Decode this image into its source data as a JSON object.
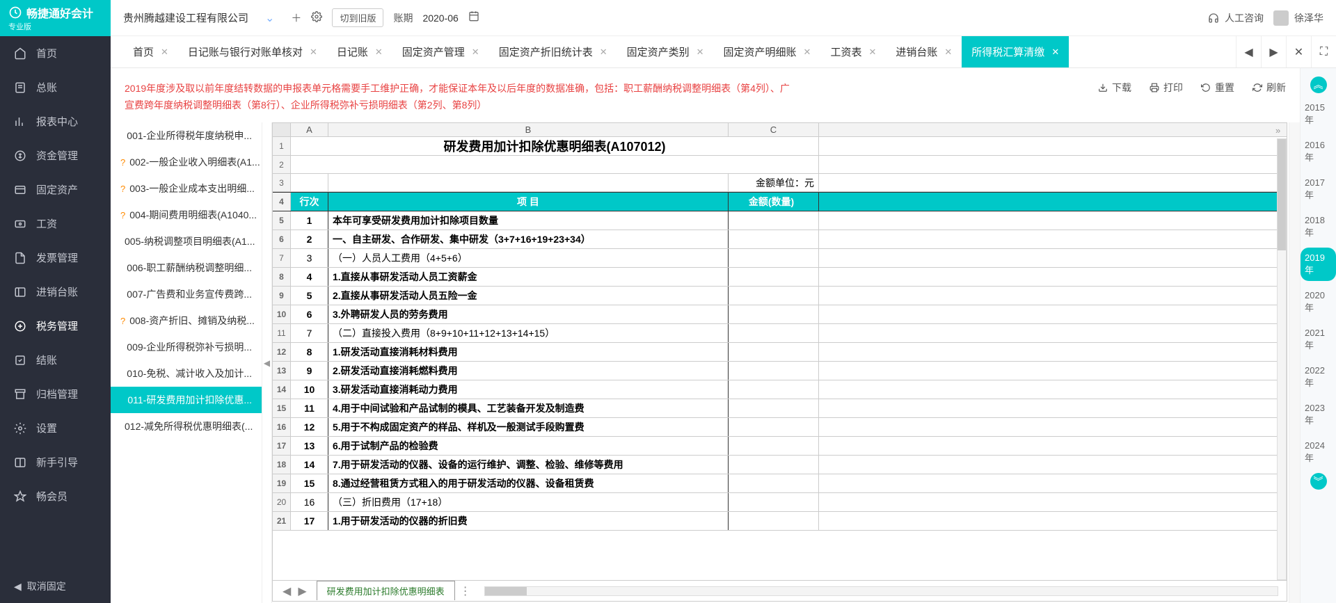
{
  "brand": {
    "name": "畅捷通好会计",
    "sub": "专业版"
  },
  "company": "贵州腾越建设工程有限公司",
  "old_version_btn": "切到旧版",
  "period": {
    "label": "账期",
    "value": "2020-06"
  },
  "top_links": {
    "consult": "人工咨询",
    "username": "徐泽华"
  },
  "nav": [
    {
      "icon": "home",
      "label": "首页"
    },
    {
      "icon": "ledger",
      "label": "总账"
    },
    {
      "icon": "report",
      "label": "报表中心"
    },
    {
      "icon": "fund",
      "label": "资金管理"
    },
    {
      "icon": "asset",
      "label": "固定资产"
    },
    {
      "icon": "salary",
      "label": "工资"
    },
    {
      "icon": "invoice",
      "label": "发票管理"
    },
    {
      "icon": "jinxiao",
      "label": "进销台账"
    },
    {
      "icon": "tax",
      "label": "税务管理",
      "active": true
    },
    {
      "icon": "close",
      "label": "结账"
    },
    {
      "icon": "archive",
      "label": "归档管理"
    },
    {
      "icon": "settings",
      "label": "设置"
    },
    {
      "icon": "guide",
      "label": "新手引导"
    },
    {
      "icon": "vip",
      "label": "畅会员"
    }
  ],
  "unpin": "取消固定",
  "tabs": [
    {
      "label": "首页",
      "closable": true
    },
    {
      "label": "日记账与银行对账单核对",
      "closable": true
    },
    {
      "label": "日记账",
      "closable": true
    },
    {
      "label": "固定资产管理",
      "closable": true
    },
    {
      "label": "固定资产折旧统计表",
      "closable": true
    },
    {
      "label": "固定资产类别",
      "closable": true
    },
    {
      "label": "固定资产明细账",
      "closable": true
    },
    {
      "label": "工资表",
      "closable": true
    },
    {
      "label": "进销台账",
      "closable": true
    },
    {
      "label": "所得税汇算清缴",
      "closable": true,
      "active": true
    }
  ],
  "notice": "2019年度涉及取以前年度结转数据的申报表单元格需要手工维护正确，才能保证本年及以后年度的数据准确，包括：职工薪酬纳税调整明细表（第4列）、广宣费跨年度纳税调整明细表（第8行）、企业所得税弥补亏损明细表（第2列、第8列）",
  "toolbar": {
    "download": "下载",
    "print": "打印",
    "reset": "重置",
    "refresh": "刷新"
  },
  "reports": [
    {
      "q": false,
      "label": "001-企业所得税年度纳税申..."
    },
    {
      "q": true,
      "label": "002-一般企业收入明细表(A1..."
    },
    {
      "q": true,
      "label": "003-一般企业成本支出明细..."
    },
    {
      "q": true,
      "label": "004-期间费用明细表(A1040..."
    },
    {
      "q": false,
      "label": "005-纳税调整项目明细表(A1..."
    },
    {
      "q": false,
      "label": "006-职工薪酬纳税调整明细..."
    },
    {
      "q": false,
      "label": "007-广告费和业务宣传费跨..."
    },
    {
      "q": true,
      "label": "008-资产折旧、摊销及纳税..."
    },
    {
      "q": false,
      "label": "009-企业所得税弥补亏损明..."
    },
    {
      "q": false,
      "label": "010-免税、减计收入及加计..."
    },
    {
      "q": false,
      "label": "011-研发费用加计扣除优惠...",
      "sel": true
    },
    {
      "q": false,
      "label": "012-减免所得税优惠明细表(..."
    }
  ],
  "sheet": {
    "title": "研发费用加计扣除优惠明细表(A107012)",
    "unit": "金额单位：元",
    "col_headers": {
      "a": "行次",
      "b": "项     目",
      "c": "金额(数量)"
    },
    "rows": [
      {
        "n": 1,
        "b": "本年可享受研发费用加计扣除项目数量",
        "bold": true
      },
      {
        "n": 2,
        "b": "一、自主研发、合作研发、集中研发（3+7+16+19+23+34）",
        "bold": true
      },
      {
        "n": 3,
        "b": "（一）人员人工费用（4+5+6）"
      },
      {
        "n": 4,
        "b": "1.直接从事研发活动人员工资薪金",
        "bold": true
      },
      {
        "n": 5,
        "b": "2.直接从事研发活动人员五险一金",
        "bold": true
      },
      {
        "n": 6,
        "b": "3.外聘研发人员的劳务费用",
        "bold": true
      },
      {
        "n": 7,
        "b": "（二）直接投入费用（8+9+10+11+12+13+14+15）"
      },
      {
        "n": 8,
        "b": "1.研发活动直接消耗材料费用",
        "bold": true
      },
      {
        "n": 9,
        "b": "2.研发活动直接消耗燃料费用",
        "bold": true
      },
      {
        "n": 10,
        "b": "3.研发活动直接消耗动力费用",
        "bold": true
      },
      {
        "n": 11,
        "b": "4.用于中间试验和产品试制的模具、工艺装备开发及制造费",
        "bold": true
      },
      {
        "n": 12,
        "b": "5.用于不构成固定资产的样品、样机及一般测试手段购置费",
        "bold": true
      },
      {
        "n": 13,
        "b": "6.用于试制产品的检验费",
        "bold": true
      },
      {
        "n": 14,
        "b": "7.用于研发活动的仪器、设备的运行维护、调整、检验、维修等费用",
        "bold": true
      },
      {
        "n": 15,
        "b": "8.通过经营租赁方式租入的用于研发活动的仪器、设备租赁费",
        "bold": true
      },
      {
        "n": 16,
        "b": "（三）折旧费用（17+18）"
      },
      {
        "n": 17,
        "b": "1.用于研发活动的仪器的折旧费",
        "bold": true
      }
    ],
    "tab_name": "研发费用加计扣除优惠明细表"
  },
  "years": [
    "2015年",
    "2016年",
    "2017年",
    "2018年",
    "2019年",
    "2020年",
    "2021年",
    "2022年",
    "2023年",
    "2024年"
  ],
  "active_year": "2019年",
  "colors": {
    "accent": "#00c8c8",
    "danger": "#e84242",
    "sidebar": "#2a2e3a"
  }
}
